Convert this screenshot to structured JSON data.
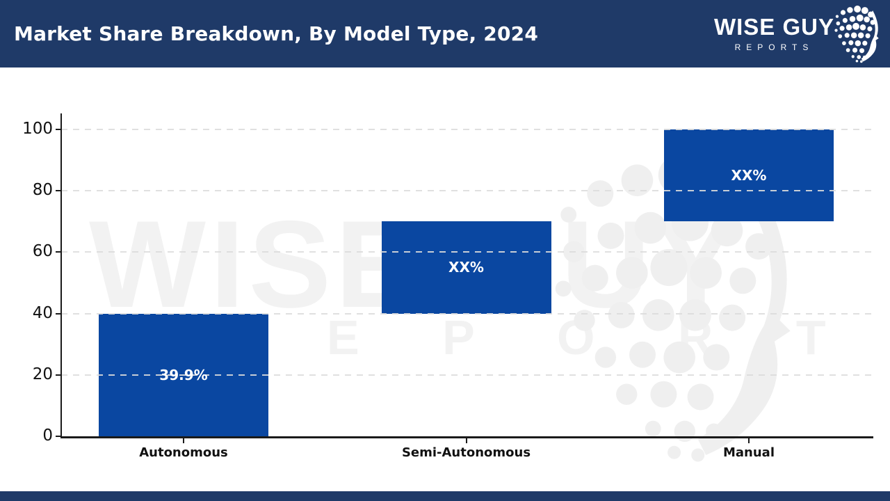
{
  "header": {
    "title": "Market Share Breakdown, By Model Type, 2024",
    "logo": {
      "line1": "WISE GUY",
      "line2": "REPORTS"
    }
  },
  "watermark": {
    "line1": "WISE GUY",
    "line2": "R E P O R T S"
  },
  "chart_data": {
    "type": "bar",
    "subtype": "floating-waterfall",
    "title": "Market Share Breakdown, By Model Type, 2024",
    "categories": [
      "Autonomous",
      "Semi-Autonomous",
      "Manual"
    ],
    "bars": [
      {
        "category": "Autonomous",
        "start": 0,
        "end": 40,
        "label": "39.9%"
      },
      {
        "category": "Semi-Autonomous",
        "start": 40,
        "end": 70,
        "label": "XX%"
      },
      {
        "category": "Manual",
        "start": 70,
        "end": 100,
        "label": "XX%"
      }
    ],
    "ylim": [
      0,
      100
    ],
    "yticks": [
      0,
      20,
      40,
      60,
      80,
      100
    ],
    "xlabel": "",
    "ylabel": "",
    "grid": "horizontal-dashed",
    "legend": "none",
    "bar_color": "#0a47a1",
    "bar_label_color": "#ffffff",
    "grid_color": "#dcdcdc",
    "axis_color": "#1a1a1a",
    "header_bg": "#1f3a68",
    "footer_bg": "#1f3a68"
  }
}
